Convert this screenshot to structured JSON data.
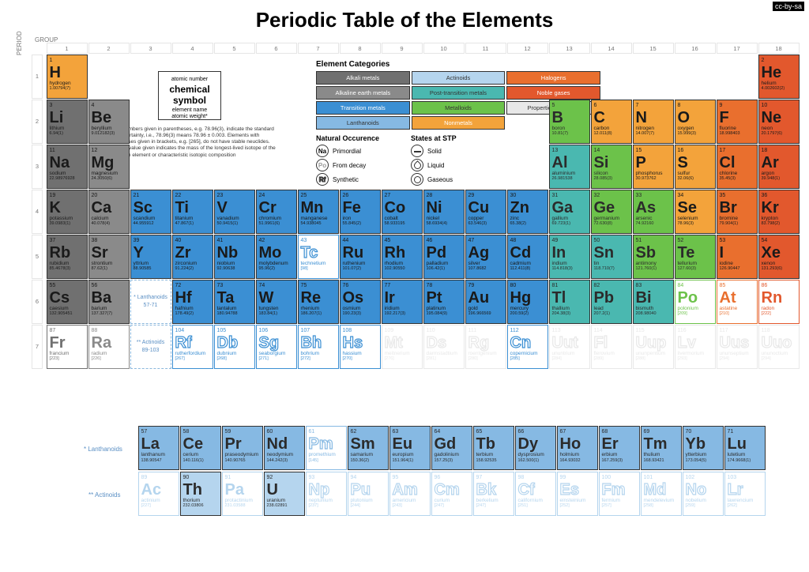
{
  "title": "Periodic Table of the Elements",
  "license": "cc-by-sa",
  "axis": {
    "group": "Group",
    "period": "Period"
  },
  "groups": [
    "1",
    "2",
    "3",
    "4",
    "5",
    "6",
    "7",
    "8",
    "9",
    "10",
    "11",
    "12",
    "13",
    "14",
    "15",
    "16",
    "17",
    "18"
  ],
  "periods": [
    "1",
    "2",
    "3",
    "4",
    "5",
    "6",
    "7"
  ],
  "colors": {
    "alkali": "#707070",
    "alkaline": "#8a8a8a",
    "transition": "#3b8fd3",
    "posttrans": "#4ab8b0",
    "metalloid": "#6cc24a",
    "nonmetal": "#f3a33b",
    "halogen": "#e96f2e",
    "noble": "#e2582d",
    "lanth": "#86b9e3",
    "act": "#b5d5ee",
    "unknown": "#e8e8e8",
    "text_light": "#ffffff",
    "text_dark": "#2b2b2b"
  },
  "key": {
    "a": "atomic number",
    "b": "chemical symbol",
    "c": "element name\natomic weight*"
  },
  "note": "* Numbers given in parentheses, e.g. 78.96(3), indicate the standard uncertainty, i.e., 78.96(3) means 78.96 ± 0.003. Elements with masses given in brackets, e.g. [265], do not have stable neuclides. The value given indicates the mass of the longest-lived isotope of the given element or characteristic isotopic composition",
  "legend": {
    "title": "Element Categories",
    "cats": [
      {
        "l": "Alkali metals",
        "c": "alkali"
      },
      {
        "l": "Actinoids",
        "c": "act"
      },
      {
        "l": "Halogens",
        "c": "halogen"
      },
      {
        "l": "Alkaline earth metals",
        "c": "alkaline"
      },
      {
        "l": "Post-transition metals",
        "c": "posttrans"
      },
      {
        "l": "Noble gases",
        "c": "noble"
      },
      {
        "l": "Transition metals",
        "c": "transition"
      },
      {
        "l": "Metalloids",
        "c": "metalloid"
      },
      {
        "l": "Properties unknown",
        "c": "unknown"
      },
      {
        "l": "Lanthanoids",
        "c": "lanth"
      },
      {
        "l": "Nonmetals",
        "c": "nonmetal"
      }
    ],
    "occurrence": {
      "title": "Natural Occurence",
      "items": [
        {
          "g": "Na",
          "l": "Primordial"
        },
        {
          "g": "Po",
          "l": "From decay"
        },
        {
          "g": "Rf",
          "l": "Synthetic"
        }
      ]
    },
    "states": {
      "title": "States at STP",
      "items": [
        {
          "k": "solid",
          "l": "Solid"
        },
        {
          "k": "liquid",
          "l": "Liquid"
        },
        {
          "k": "gas",
          "l": "Gaseous"
        }
      ]
    }
  },
  "placeholders": {
    "lan": "*\nLanthanoids\n57-71",
    "act": "**\nActinoids\n89-103"
  },
  "flabels": {
    "lan": "* Lanthanoids",
    "act": "** Actinoids"
  },
  "elements": [
    {
      "n": 1,
      "s": "H",
      "nm": "hydrogen",
      "w": "1.00794(7)",
      "c": "nonmetal",
      "r": 1,
      "g": 1
    },
    {
      "n": 2,
      "s": "He",
      "nm": "helium",
      "w": "4.002602(2)",
      "c": "noble",
      "r": 1,
      "g": 18
    },
    {
      "n": 3,
      "s": "Li",
      "nm": "lithium",
      "w": "6.94(1)",
      "c": "alkali",
      "r": 2,
      "g": 1
    },
    {
      "n": 4,
      "s": "Be",
      "nm": "beryllium",
      "w": "9.012182(3)",
      "c": "alkaline",
      "r": 2,
      "g": 2
    },
    {
      "n": 5,
      "s": "B",
      "nm": "boron",
      "w": "10.81(7)",
      "c": "metalloid",
      "r": 2,
      "g": 13
    },
    {
      "n": 6,
      "s": "C",
      "nm": "carbon",
      "w": "12.011(8)",
      "c": "nonmetal",
      "r": 2,
      "g": 14
    },
    {
      "n": 7,
      "s": "N",
      "nm": "nitrogen",
      "w": "14.007(7)",
      "c": "nonmetal",
      "r": 2,
      "g": 15
    },
    {
      "n": 8,
      "s": "O",
      "nm": "oxygen",
      "w": "15.999(3)",
      "c": "nonmetal",
      "r": 2,
      "g": 16
    },
    {
      "n": 9,
      "s": "F",
      "nm": "fluorine",
      "w": "18.998403",
      "c": "halogen",
      "r": 2,
      "g": 17
    },
    {
      "n": 10,
      "s": "Ne",
      "nm": "neon",
      "w": "20.1797(6)",
      "c": "noble",
      "r": 2,
      "g": 18
    },
    {
      "n": 11,
      "s": "Na",
      "nm": "sodium",
      "w": "22.98976928",
      "c": "alkali",
      "r": 3,
      "g": 1
    },
    {
      "n": 12,
      "s": "Mg",
      "nm": "magnesium",
      "w": "24.3050(6)",
      "c": "alkaline",
      "r": 3,
      "g": 2
    },
    {
      "n": 13,
      "s": "Al",
      "nm": "aluminium",
      "w": "26.981538",
      "c": "posttrans",
      "r": 3,
      "g": 13
    },
    {
      "n": 14,
      "s": "Si",
      "nm": "silicon",
      "w": "28.085(3)",
      "c": "metalloid",
      "r": 3,
      "g": 14
    },
    {
      "n": 15,
      "s": "P",
      "nm": "phosphorus",
      "w": "30.973762",
      "c": "nonmetal",
      "r": 3,
      "g": 15
    },
    {
      "n": 16,
      "s": "S",
      "nm": "sulfur",
      "w": "32.06(6)",
      "c": "nonmetal",
      "r": 3,
      "g": 16
    },
    {
      "n": 17,
      "s": "Cl",
      "nm": "chlorine",
      "w": "35.45(3)",
      "c": "halogen",
      "r": 3,
      "g": 17
    },
    {
      "n": 18,
      "s": "Ar",
      "nm": "argon",
      "w": "39.948(1)",
      "c": "noble",
      "r": 3,
      "g": 18
    },
    {
      "n": 19,
      "s": "K",
      "nm": "potassium",
      "w": "39.0983(1)",
      "c": "alkali",
      "r": 4,
      "g": 1
    },
    {
      "n": 20,
      "s": "Ca",
      "nm": "calcium",
      "w": "40.078(4)",
      "c": "alkaline",
      "r": 4,
      "g": 2
    },
    {
      "n": 21,
      "s": "Sc",
      "nm": "scandium",
      "w": "44.955912",
      "c": "transition",
      "r": 4,
      "g": 3
    },
    {
      "n": 22,
      "s": "Ti",
      "nm": "titanium",
      "w": "47.867(1)",
      "c": "transition",
      "r": 4,
      "g": 4
    },
    {
      "n": 23,
      "s": "V",
      "nm": "vanadium",
      "w": "50.9415(1)",
      "c": "transition",
      "r": 4,
      "g": 5
    },
    {
      "n": 24,
      "s": "Cr",
      "nm": "chromium",
      "w": "51.9961(6)",
      "c": "transition",
      "r": 4,
      "g": 6
    },
    {
      "n": 25,
      "s": "Mn",
      "nm": "manganese",
      "w": "54.938045",
      "c": "transition",
      "r": 4,
      "g": 7
    },
    {
      "n": 26,
      "s": "Fe",
      "nm": "iron",
      "w": "55.845(2)",
      "c": "transition",
      "r": 4,
      "g": 8
    },
    {
      "n": 27,
      "s": "Co",
      "nm": "cobalt",
      "w": "58.933195",
      "c": "transition",
      "r": 4,
      "g": 9
    },
    {
      "n": 28,
      "s": "Ni",
      "nm": "nickel",
      "w": "58.6934(4)",
      "c": "transition",
      "r": 4,
      "g": 10
    },
    {
      "n": 29,
      "s": "Cu",
      "nm": "copper",
      "w": "63.546(3)",
      "c": "transition",
      "r": 4,
      "g": 11
    },
    {
      "n": 30,
      "s": "Zn",
      "nm": "zinc",
      "w": "65.38(2)",
      "c": "transition",
      "r": 4,
      "g": 12
    },
    {
      "n": 31,
      "s": "Ga",
      "nm": "gallium",
      "w": "69.723(1)",
      "c": "posttrans",
      "r": 4,
      "g": 13
    },
    {
      "n": 32,
      "s": "Ge",
      "nm": "germanium",
      "w": "72.630(8)",
      "c": "metalloid",
      "r": 4,
      "g": 14
    },
    {
      "n": 33,
      "s": "As",
      "nm": "arsenic",
      "w": "74.92160",
      "c": "metalloid",
      "r": 4,
      "g": 15
    },
    {
      "n": 34,
      "s": "Se",
      "nm": "selenium",
      "w": "78.96(3)",
      "c": "nonmetal",
      "r": 4,
      "g": 16
    },
    {
      "n": 35,
      "s": "Br",
      "nm": "bromine",
      "w": "79.904(1)",
      "c": "halogen",
      "r": 4,
      "g": 17
    },
    {
      "n": 36,
      "s": "Kr",
      "nm": "krypton",
      "w": "83.798(2)",
      "c": "noble",
      "r": 4,
      "g": 18
    },
    {
      "n": 37,
      "s": "Rb",
      "nm": "rubidium",
      "w": "85.4678(3)",
      "c": "alkali",
      "r": 5,
      "g": 1
    },
    {
      "n": 38,
      "s": "Sr",
      "nm": "strontium",
      "w": "87.62(1)",
      "c": "alkaline",
      "r": 5,
      "g": 2
    },
    {
      "n": 39,
      "s": "Y",
      "nm": "yttrium",
      "w": "88.90585",
      "c": "transition",
      "r": 5,
      "g": 3
    },
    {
      "n": 40,
      "s": "Zr",
      "nm": "zirconium",
      "w": "91.224(2)",
      "c": "transition",
      "r": 5,
      "g": 4
    },
    {
      "n": 41,
      "s": "Nb",
      "nm": "niobium",
      "w": "92.90638",
      "c": "transition",
      "r": 5,
      "g": 5
    },
    {
      "n": 42,
      "s": "Mo",
      "nm": "molybdenum",
      "w": "95.96(2)",
      "c": "transition",
      "r": 5,
      "g": 6
    },
    {
      "n": 43,
      "s": "Tc",
      "nm": "technetium",
      "w": "[98]",
      "c": "transition",
      "r": 5,
      "g": 7,
      "o": "syn"
    },
    {
      "n": 44,
      "s": "Ru",
      "nm": "ruthenium",
      "w": "101.07(2)",
      "c": "transition",
      "r": 5,
      "g": 8
    },
    {
      "n": 45,
      "s": "Rh",
      "nm": "rhodium",
      "w": "102.90550",
      "c": "transition",
      "r": 5,
      "g": 9
    },
    {
      "n": 46,
      "s": "Pd",
      "nm": "palladium",
      "w": "106.42(1)",
      "c": "transition",
      "r": 5,
      "g": 10
    },
    {
      "n": 47,
      "s": "Ag",
      "nm": "silver",
      "w": "107.8682",
      "c": "transition",
      "r": 5,
      "g": 11
    },
    {
      "n": 48,
      "s": "Cd",
      "nm": "cadmium",
      "w": "112.411(8)",
      "c": "transition",
      "r": 5,
      "g": 12
    },
    {
      "n": 49,
      "s": "In",
      "nm": "indium",
      "w": "114.818(3)",
      "c": "posttrans",
      "r": 5,
      "g": 13
    },
    {
      "n": 50,
      "s": "Sn",
      "nm": "tin",
      "w": "118.710(7)",
      "c": "posttrans",
      "r": 5,
      "g": 14
    },
    {
      "n": 51,
      "s": "Sb",
      "nm": "antimony",
      "w": "121.760(1)",
      "c": "metalloid",
      "r": 5,
      "g": 15
    },
    {
      "n": 52,
      "s": "Te",
      "nm": "tellurium",
      "w": "127.60(3)",
      "c": "metalloid",
      "r": 5,
      "g": 16
    },
    {
      "n": 53,
      "s": "I",
      "nm": "iodine",
      "w": "126.90447",
      "c": "halogen",
      "r": 5,
      "g": 17
    },
    {
      "n": 54,
      "s": "Xe",
      "nm": "xenon",
      "w": "131.293(6)",
      "c": "noble",
      "r": 5,
      "g": 18
    },
    {
      "n": 55,
      "s": "Cs",
      "nm": "caesium",
      "w": "132.905451",
      "c": "alkali",
      "r": 6,
      "g": 1
    },
    {
      "n": 56,
      "s": "Ba",
      "nm": "barium",
      "w": "137.327(7)",
      "c": "alkaline",
      "r": 6,
      "g": 2
    },
    {
      "n": 72,
      "s": "Hf",
      "nm": "hafnium",
      "w": "178.49(2)",
      "c": "transition",
      "r": 6,
      "g": 4
    },
    {
      "n": 73,
      "s": "Ta",
      "nm": "tantalum",
      "w": "180.94788",
      "c": "transition",
      "r": 6,
      "g": 5
    },
    {
      "n": 74,
      "s": "W",
      "nm": "tungsten",
      "w": "183.84(1)",
      "c": "transition",
      "r": 6,
      "g": 6
    },
    {
      "n": 75,
      "s": "Re",
      "nm": "rhenium",
      "w": "186.207(1)",
      "c": "transition",
      "r": 6,
      "g": 7
    },
    {
      "n": 76,
      "s": "Os",
      "nm": "osmium",
      "w": "190.23(3)",
      "c": "transition",
      "r": 6,
      "g": 8
    },
    {
      "n": 77,
      "s": "Ir",
      "nm": "iridium",
      "w": "192.217(3)",
      "c": "transition",
      "r": 6,
      "g": 9
    },
    {
      "n": 78,
      "s": "Pt",
      "nm": "platinum",
      "w": "195.084(9)",
      "c": "transition",
      "r": 6,
      "g": 10
    },
    {
      "n": 79,
      "s": "Au",
      "nm": "gold",
      "w": "196.966569",
      "c": "transition",
      "r": 6,
      "g": 11
    },
    {
      "n": 80,
      "s": "Hg",
      "nm": "mercury",
      "w": "200.59(2)",
      "c": "transition",
      "r": 6,
      "g": 12
    },
    {
      "n": 81,
      "s": "Tl",
      "nm": "thallium",
      "w": "204.38(3)",
      "c": "posttrans",
      "r": 6,
      "g": 13
    },
    {
      "n": 82,
      "s": "Pb",
      "nm": "lead",
      "w": "207.2(1)",
      "c": "posttrans",
      "r": 6,
      "g": 14
    },
    {
      "n": 83,
      "s": "Bi",
      "nm": "bismuth",
      "w": "208.98040",
      "c": "posttrans",
      "r": 6,
      "g": 15
    },
    {
      "n": 84,
      "s": "Po",
      "nm": "polonium",
      "w": "[209]",
      "c": "metalloid",
      "r": 6,
      "g": 16,
      "o": "decay"
    },
    {
      "n": 85,
      "s": "At",
      "nm": "astatine",
      "w": "[210]",
      "c": "halogen",
      "r": 6,
      "g": 17,
      "o": "decay"
    },
    {
      "n": 86,
      "s": "Rn",
      "nm": "radon",
      "w": "[222]",
      "c": "noble",
      "r": 6,
      "g": 18,
      "o": "decay"
    },
    {
      "n": 87,
      "s": "Fr",
      "nm": "francium",
      "w": "[223]",
      "c": "alkali",
      "r": 7,
      "g": 1,
      "o": "decay"
    },
    {
      "n": 88,
      "s": "Ra",
      "nm": "radium",
      "w": "[226]",
      "c": "alkaline",
      "r": 7,
      "g": 2,
      "o": "decay"
    },
    {
      "n": 104,
      "s": "Rf",
      "nm": "rutherfordium",
      "w": "[267]",
      "c": "transition",
      "r": 7,
      "g": 4,
      "o": "syn"
    },
    {
      "n": 105,
      "s": "Db",
      "nm": "dubnium",
      "w": "[268]",
      "c": "transition",
      "r": 7,
      "g": 5,
      "o": "syn"
    },
    {
      "n": 106,
      "s": "Sg",
      "nm": "seaborgium",
      "w": "[271]",
      "c": "transition",
      "r": 7,
      "g": 6,
      "o": "syn"
    },
    {
      "n": 107,
      "s": "Bh",
      "nm": "bohrium",
      "w": "[272]",
      "c": "transition",
      "r": 7,
      "g": 7,
      "o": "syn"
    },
    {
      "n": 108,
      "s": "Hs",
      "nm": "hassium",
      "w": "[270]",
      "c": "transition",
      "r": 7,
      "g": 8,
      "o": "syn"
    },
    {
      "n": 109,
      "s": "Mt",
      "nm": "meitnerium",
      "w": "[276]",
      "c": "unknown",
      "r": 7,
      "g": 9,
      "o": "syn"
    },
    {
      "n": 110,
      "s": "Ds",
      "nm": "darmstadtium",
      "w": "[281]",
      "c": "unknown",
      "r": 7,
      "g": 10,
      "o": "syn"
    },
    {
      "n": 111,
      "s": "Rg",
      "nm": "roentgenium",
      "w": "[280]",
      "c": "unknown",
      "r": 7,
      "g": 11,
      "o": "syn"
    },
    {
      "n": 112,
      "s": "Cn",
      "nm": "copernicium",
      "w": "[285]",
      "c": "transition",
      "r": 7,
      "g": 12,
      "o": "syn"
    },
    {
      "n": 113,
      "s": "Uut",
      "nm": "ununtrium",
      "w": "[284]",
      "c": "unknown",
      "r": 7,
      "g": 13,
      "o": "syn"
    },
    {
      "n": 114,
      "s": "Fl",
      "nm": "flerovium",
      "w": "[289]",
      "c": "unknown",
      "r": 7,
      "g": 14,
      "o": "syn"
    },
    {
      "n": 115,
      "s": "Uup",
      "nm": "ununpentium",
      "w": "[288]",
      "c": "unknown",
      "r": 7,
      "g": 15,
      "o": "syn"
    },
    {
      "n": 116,
      "s": "Lv",
      "nm": "livermorium",
      "w": "[293]",
      "c": "unknown",
      "r": 7,
      "g": 16,
      "o": "syn"
    },
    {
      "n": 117,
      "s": "Uus",
      "nm": "ununseptium",
      "w": "[294]",
      "c": "unknown",
      "r": 7,
      "g": 17,
      "o": "syn"
    },
    {
      "n": 118,
      "s": "Uuo",
      "nm": "ununoctium",
      "w": "[294]",
      "c": "unknown",
      "r": 7,
      "g": 18,
      "o": "syn"
    }
  ],
  "lanth": [
    {
      "n": 57,
      "s": "La",
      "nm": "lanthanum",
      "w": "138.90547"
    },
    {
      "n": 58,
      "s": "Ce",
      "nm": "cerium",
      "w": "140.116(1)"
    },
    {
      "n": 59,
      "s": "Pr",
      "nm": "praseodymium",
      "w": "140.90765"
    },
    {
      "n": 60,
      "s": "Nd",
      "nm": "neodymium",
      "w": "144.242(3)"
    },
    {
      "n": 61,
      "s": "Pm",
      "nm": "promethium",
      "w": "[145]",
      "o": "syn"
    },
    {
      "n": 62,
      "s": "Sm",
      "nm": "samarium",
      "w": "150.36(2)"
    },
    {
      "n": 63,
      "s": "Eu",
      "nm": "europium",
      "w": "151.964(1)"
    },
    {
      "n": 64,
      "s": "Gd",
      "nm": "gadolinium",
      "w": "157.25(3)"
    },
    {
      "n": 65,
      "s": "Tb",
      "nm": "terbium",
      "w": "158.92535"
    },
    {
      "n": 66,
      "s": "Dy",
      "nm": "dysprosium",
      "w": "162.500(1)"
    },
    {
      "n": 67,
      "s": "Ho",
      "nm": "holmium",
      "w": "164.93032"
    },
    {
      "n": 68,
      "s": "Er",
      "nm": "erbium",
      "w": "167.259(3)"
    },
    {
      "n": 69,
      "s": "Tm",
      "nm": "thulium",
      "w": "168.93421"
    },
    {
      "n": 70,
      "s": "Yb",
      "nm": "ytterbium",
      "w": "173.054(5)"
    },
    {
      "n": 71,
      "s": "Lu",
      "nm": "lutetium",
      "w": "174.9668(1)"
    }
  ],
  "act": [
    {
      "n": 89,
      "s": "Ac",
      "nm": "actinium",
      "w": "[227]",
      "o": "decay"
    },
    {
      "n": 90,
      "s": "Th",
      "nm": "thorium",
      "w": "232.03806"
    },
    {
      "n": 91,
      "s": "Pa",
      "nm": "protactinium",
      "w": "231.03588",
      "o": "decay"
    },
    {
      "n": 92,
      "s": "U",
      "nm": "uranium",
      "w": "238.02891"
    },
    {
      "n": 93,
      "s": "Np",
      "nm": "neptunium",
      "w": "[237]",
      "o": "syn"
    },
    {
      "n": 94,
      "s": "Pu",
      "nm": "plutonium",
      "w": "[244]",
      "o": "syn"
    },
    {
      "n": 95,
      "s": "Am",
      "nm": "americium",
      "w": "[243]",
      "o": "syn"
    },
    {
      "n": 96,
      "s": "Cm",
      "nm": "curium",
      "w": "[247]",
      "o": "syn"
    },
    {
      "n": 97,
      "s": "Bk",
      "nm": "berkelium",
      "w": "[247]",
      "o": "syn"
    },
    {
      "n": 98,
      "s": "Cf",
      "nm": "californium",
      "w": "[251]",
      "o": "syn"
    },
    {
      "n": 99,
      "s": "Es",
      "nm": "einsteinium",
      "w": "[252]",
      "o": "syn"
    },
    {
      "n": 100,
      "s": "Fm",
      "nm": "fermium",
      "w": "[257]",
      "o": "syn"
    },
    {
      "n": 101,
      "s": "Md",
      "nm": "mendelevium",
      "w": "[258]",
      "o": "syn"
    },
    {
      "n": 102,
      "s": "No",
      "nm": "nobelium",
      "w": "[259]",
      "o": "syn"
    },
    {
      "n": 103,
      "s": "Lr",
      "nm": "lawrencium",
      "w": "[262]",
      "o": "syn"
    }
  ]
}
